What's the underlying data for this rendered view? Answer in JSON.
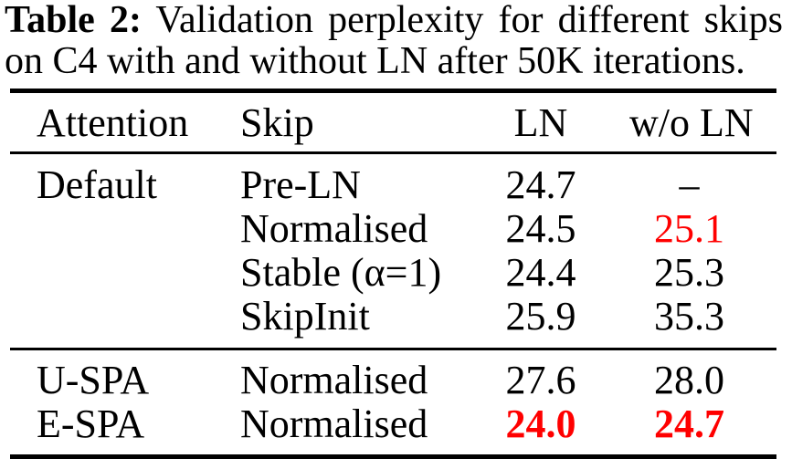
{
  "caption": {
    "label": "Table 2:",
    "line1_rest": " Validation perplexity for different skips",
    "line2": "on C4 with and without LN after 50K iterations."
  },
  "colors": {
    "text": "#000000",
    "background": "#ffffff",
    "highlight_red": "#ff0000"
  },
  "table": {
    "columns": [
      "Attention",
      "Skip",
      "LN",
      "w/o LN"
    ],
    "sections": [
      {
        "rows": [
          {
            "attention": "Default",
            "skip": "Pre-LN",
            "ln": "24.7",
            "wo_ln": "–"
          },
          {
            "attention": "",
            "skip": "Normalised",
            "ln": "24.5",
            "wo_ln": "25.1"
          },
          {
            "attention": "",
            "skip": "Stable (α=1)",
            "ln": "24.4",
            "wo_ln": "25.3"
          },
          {
            "attention": "",
            "skip": "SkipInit",
            "ln": "25.9",
            "wo_ln": "35.3"
          }
        ]
      },
      {
        "rows": [
          {
            "attention": "U-SPA",
            "skip": "Normalised",
            "ln": "27.6",
            "wo_ln": "28.0"
          },
          {
            "attention": "E-SPA",
            "skip": "Normalised",
            "ln": "24.0",
            "wo_ln": "24.7"
          }
        ]
      }
    ]
  }
}
